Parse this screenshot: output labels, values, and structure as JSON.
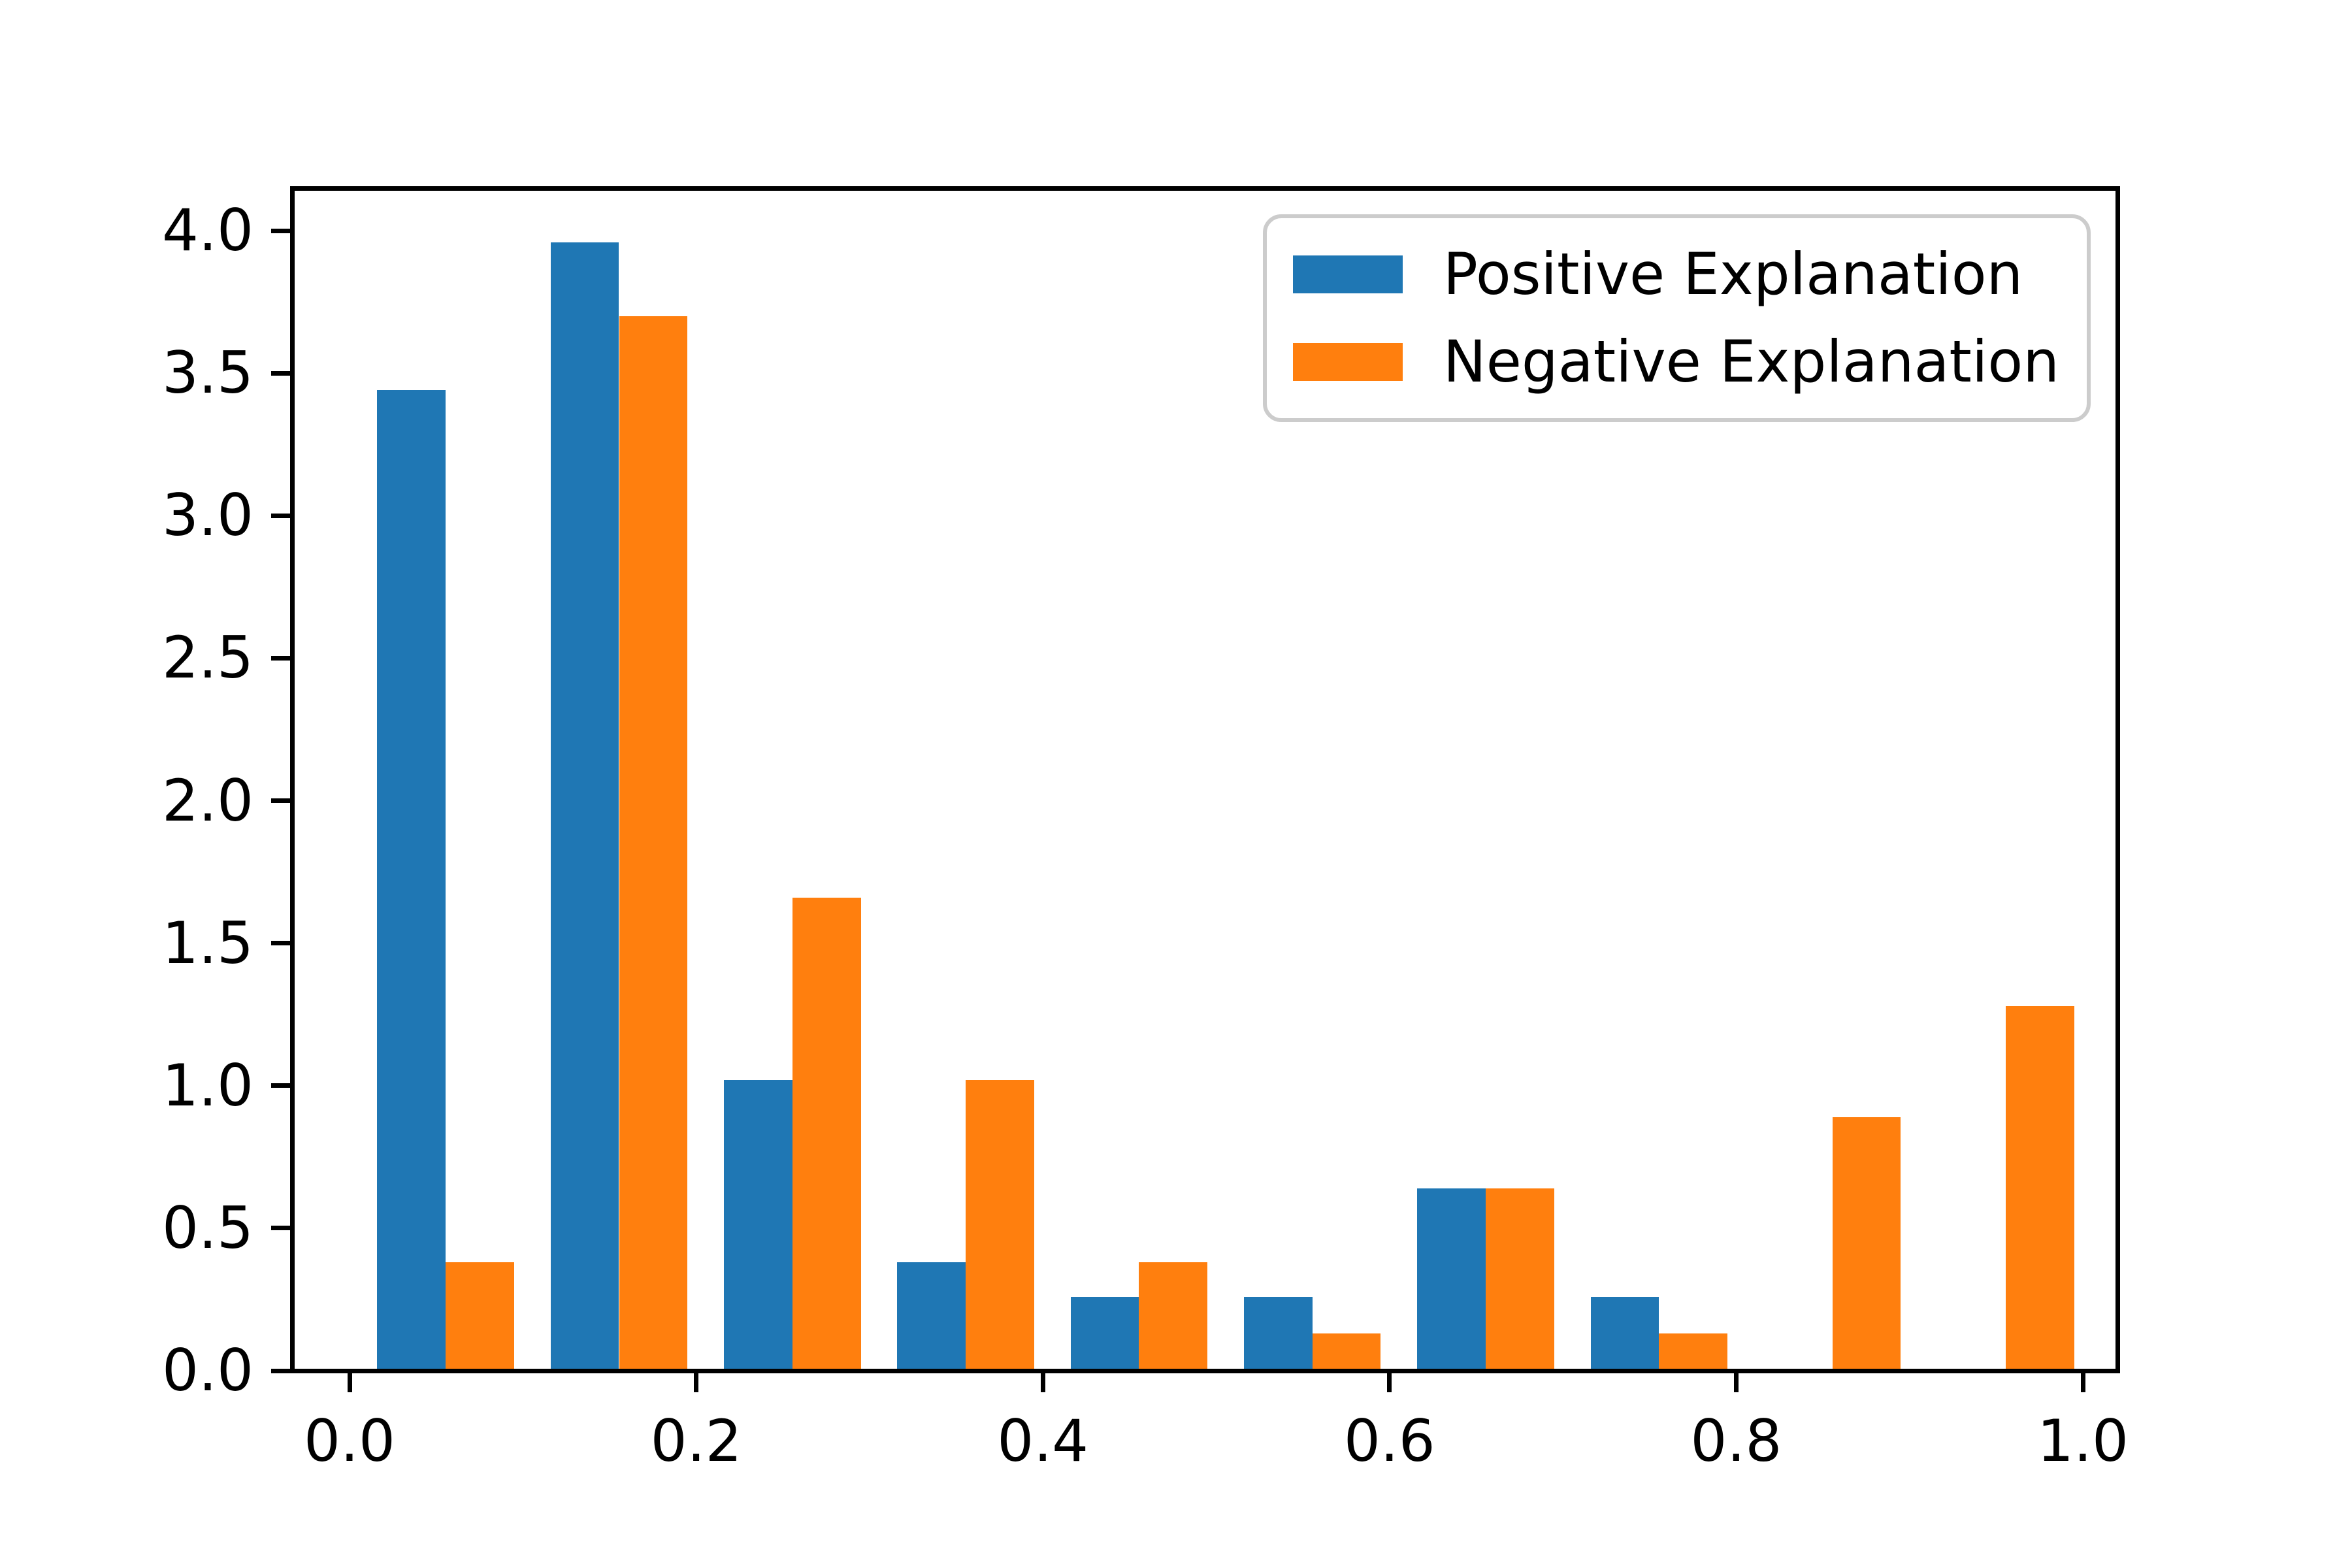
{
  "chart_data": {
    "type": "bar",
    "subtype": "histogram-grouped",
    "title": "",
    "xlabel": "",
    "ylabel": "",
    "bin_edges": [
      0.0,
      0.1,
      0.2,
      0.3,
      0.4,
      0.5,
      0.6,
      0.7,
      0.8,
      0.9,
      1.0
    ],
    "series": [
      {
        "name": "Positive Explanation",
        "color": "#1f77b4",
        "values": [
          3.44,
          3.96,
          1.02,
          0.38,
          0.26,
          0.26,
          0.64,
          0.26,
          0.0,
          0.0
        ]
      },
      {
        "name": "Negative Explanation",
        "color": "#ff7f0e",
        "values": [
          0.38,
          3.7,
          1.66,
          1.02,
          0.38,
          0.13,
          0.64,
          0.13,
          0.89,
          1.28
        ]
      }
    ],
    "xlim": [
      -0.033,
      1.02
    ],
    "ylim": [
      0,
      4.15
    ],
    "xticks": [
      0.0,
      0.2,
      0.4,
      0.6,
      0.8,
      1.0
    ],
    "xtick_labels": [
      "0.0",
      "0.2",
      "0.4",
      "0.6",
      "0.8",
      "1.0"
    ],
    "yticks": [
      0.0,
      0.5,
      1.0,
      1.5,
      2.0,
      2.5,
      3.0,
      3.5,
      4.0
    ],
    "ytick_labels": [
      "0.0",
      "0.5",
      "1.0",
      "1.5",
      "2.0",
      "2.5",
      "3.0",
      "3.5",
      "4.0"
    ],
    "grid": false,
    "legend": {
      "position": "upper right",
      "entries": [
        "Positive Explanation",
        "Negative Explanation"
      ]
    }
  }
}
